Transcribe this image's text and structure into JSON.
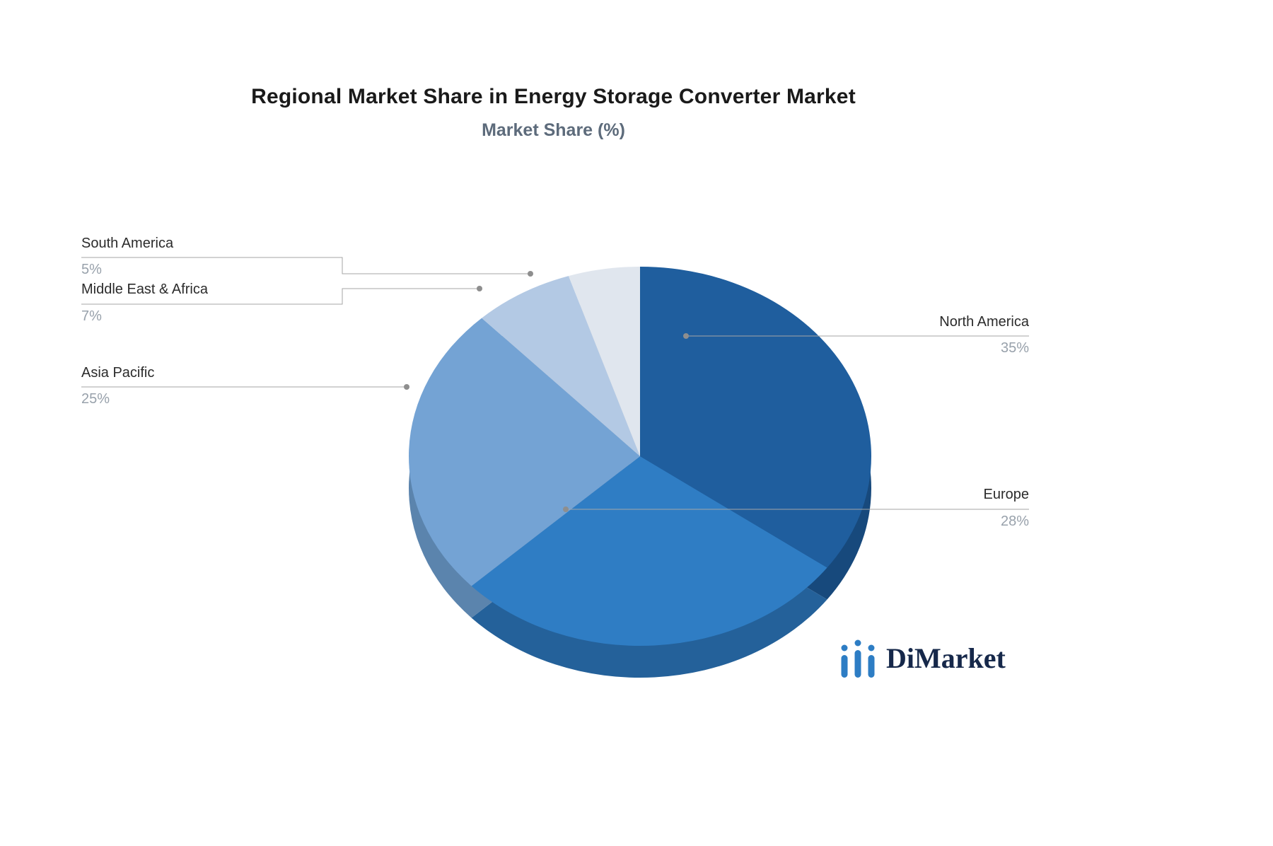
{
  "chart_data": {
    "type": "pie",
    "title": "Regional Market Share in Energy Storage Converter Market",
    "subtitle": "Market Share (%)",
    "unit": "%",
    "effect": "3d",
    "start_angle_deg": 0,
    "clockwise": true,
    "legend_position": "callout-labels",
    "categories": [
      "North America",
      "Europe",
      "Asia Pacific",
      "Middle East & Africa",
      "South America"
    ],
    "values": [
      35,
      28,
      25,
      7,
      5
    ],
    "points": [
      {
        "label": "North America",
        "value": 35,
        "value_label": "35%",
        "color": "#1f5e9e",
        "side_color": "#17497c"
      },
      {
        "label": "Europe",
        "value": 28,
        "value_label": "28%",
        "color": "#2f7dc4",
        "side_color": "#24619a"
      },
      {
        "label": "Asia Pacific",
        "value": 25,
        "value_label": "25%",
        "color": "#74a3d4",
        "side_color": "#5b84ad"
      },
      {
        "label": "Middle East & Africa",
        "value": 7,
        "value_label": "7%",
        "color": "#b3c9e4",
        "side_color": "#8fa6c0"
      },
      {
        "label": "South America",
        "value": 5,
        "value_label": "5%",
        "color": "#e0e6ee",
        "side_color": "#b9c3d0"
      }
    ]
  },
  "logo": {
    "text": "DiMarket",
    "icon": "bar-chart-icon",
    "icon_color": "#2d7dc4",
    "text_color": "#16284a"
  },
  "colors": {
    "background": "#ffffff",
    "title": "#1a1a1a",
    "subtitle": "#5d6b7b",
    "label_text": "#2b2b2b",
    "value_text": "#98a1ab",
    "leader_line": "#a6a6a6",
    "leader_dot": "#8e8e8e"
  }
}
